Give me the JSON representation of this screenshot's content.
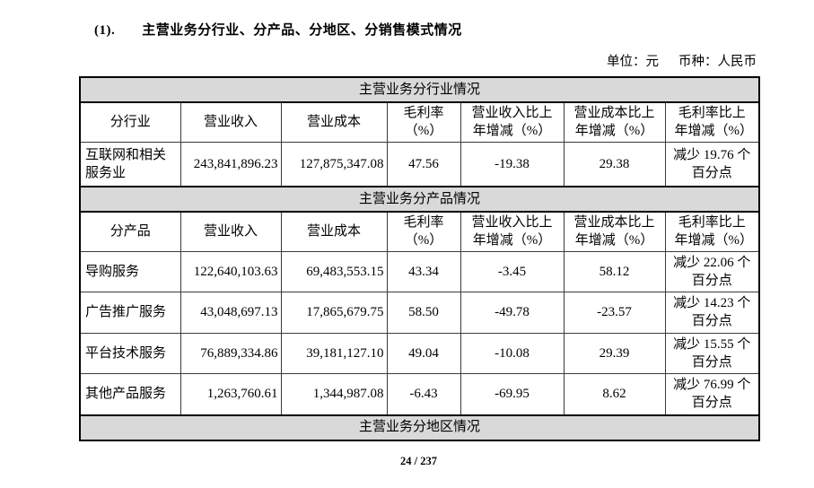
{
  "heading": {
    "number": "(1).",
    "title": "主营业务分行业、分产品、分地区、分销售模式情况"
  },
  "unit_line": {
    "unit": "单位：元",
    "currency": "币种：人民币"
  },
  "table": {
    "sections": [
      {
        "title": "主营业务分行业情况",
        "headers": [
          "分行业",
          "营业收入",
          "营业成本",
          "毛利率（%）",
          "营业收入比上年增减（%）",
          "营业成本比上年增减（%）",
          "毛利率比上年增减（%）"
        ],
        "rows": [
          [
            "互联网和相关服务业",
            "243,841,896.23",
            "127,875,347.08",
            "47.56",
            "-19.38",
            "29.38",
            "减少 19.76 个百分点"
          ]
        ]
      },
      {
        "title": "主营业务分产品情况",
        "headers": [
          "分产品",
          "营业收入",
          "营业成本",
          "毛利率（%）",
          "营业收入比上年增减（%）",
          "营业成本比上年增减（%）",
          "毛利率比上年增减（%）"
        ],
        "rows": [
          [
            "导购服务",
            "122,640,103.63",
            "69,483,553.15",
            "43.34",
            "-3.45",
            "58.12",
            "减少 22.06 个百分点"
          ],
          [
            "广告推广服务",
            "43,048,697.13",
            "17,865,679.75",
            "58.50",
            "-49.78",
            "-23.57",
            "减少 14.23 个百分点"
          ],
          [
            "平台技术服务",
            "76,889,334.86",
            "39,181,127.10",
            "49.04",
            "-10.08",
            "29.39",
            "减少 15.55 个百分点"
          ],
          [
            "其他产品服务",
            "1,263,760.61",
            "1,344,987.08",
            "-6.43",
            "-69.95",
            "8.62",
            "减少 76.99 个百分点"
          ]
        ]
      },
      {
        "title": "主营业务分地区情况",
        "headers": [],
        "rows": []
      }
    ]
  },
  "footer": {
    "page_indicator": "24 / 237"
  },
  "colors": {
    "section_header_bg": "#d9d9d9",
    "border": "#3a3a3a",
    "text": "#000000"
  }
}
